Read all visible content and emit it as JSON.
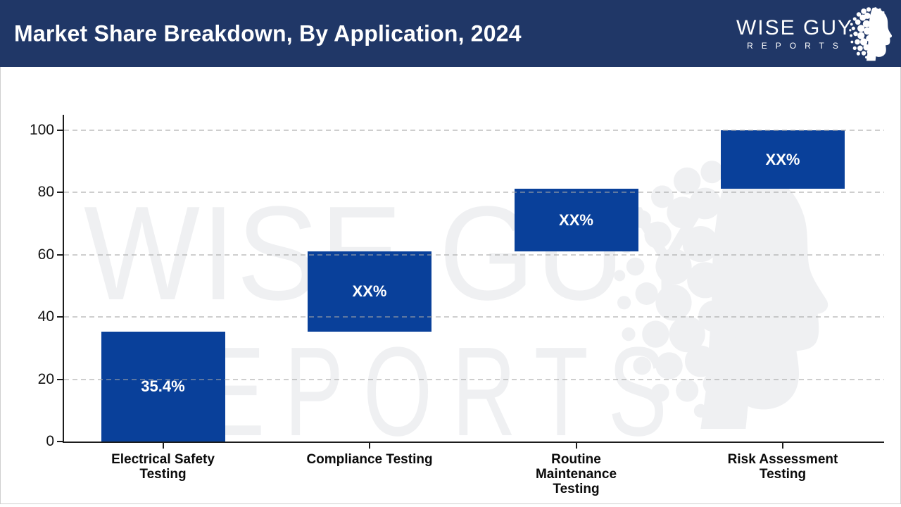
{
  "header": {
    "title": "Market Share Breakdown, By Application, 2024",
    "logo": {
      "brand": "WISE GUY",
      "sub": "REPORTS"
    }
  },
  "watermark": {
    "brand": "WISE GUY",
    "sub": "REPORTS"
  },
  "chart_data": {
    "type": "bar",
    "variant": "waterfall",
    "title": "Market Share Breakdown, By Application, 2024",
    "categories": [
      "Electrical Safety Testing",
      "Compliance Testing",
      "Routine Maintenance Testing",
      "Risk Assessment Testing"
    ],
    "category_label_lines": [
      [
        "Electrical Safety",
        "Testing"
      ],
      [
        "Compliance Testing"
      ],
      [
        "Routine",
        "Maintenance",
        "Testing"
      ],
      [
        "Risk Assessment",
        "Testing"
      ]
    ],
    "segments": [
      {
        "category": "Electrical Safety Testing",
        "start": 0,
        "end": 35.4,
        "label": "35.4%"
      },
      {
        "category": "Compliance Testing",
        "start": 35.4,
        "end": 61,
        "label": "XX%"
      },
      {
        "category": "Routine Maintenance Testing",
        "start": 61,
        "end": 81.2,
        "label": "XX%"
      },
      {
        "category": "Risk Assessment Testing",
        "start": 81.2,
        "end": 100,
        "label": "XX%"
      }
    ],
    "yticks": [
      0,
      20,
      40,
      60,
      80,
      100
    ],
    "ylim": [
      0,
      105
    ],
    "grid": {
      "axis": "y",
      "style": "dashed"
    },
    "legend": "none",
    "xlabel": "",
    "ylabel": "",
    "bar_color": "#09409a",
    "bar_label_color": "#ffffff",
    "masked_value_label": "XX%"
  },
  "colors": {
    "header_bg": "#203767",
    "bar": "#09409a",
    "axis": "#1c1c1c",
    "gridline": "#d9d9d9",
    "watermark": "#eff0f2",
    "page_border": "#cfcfcf"
  }
}
